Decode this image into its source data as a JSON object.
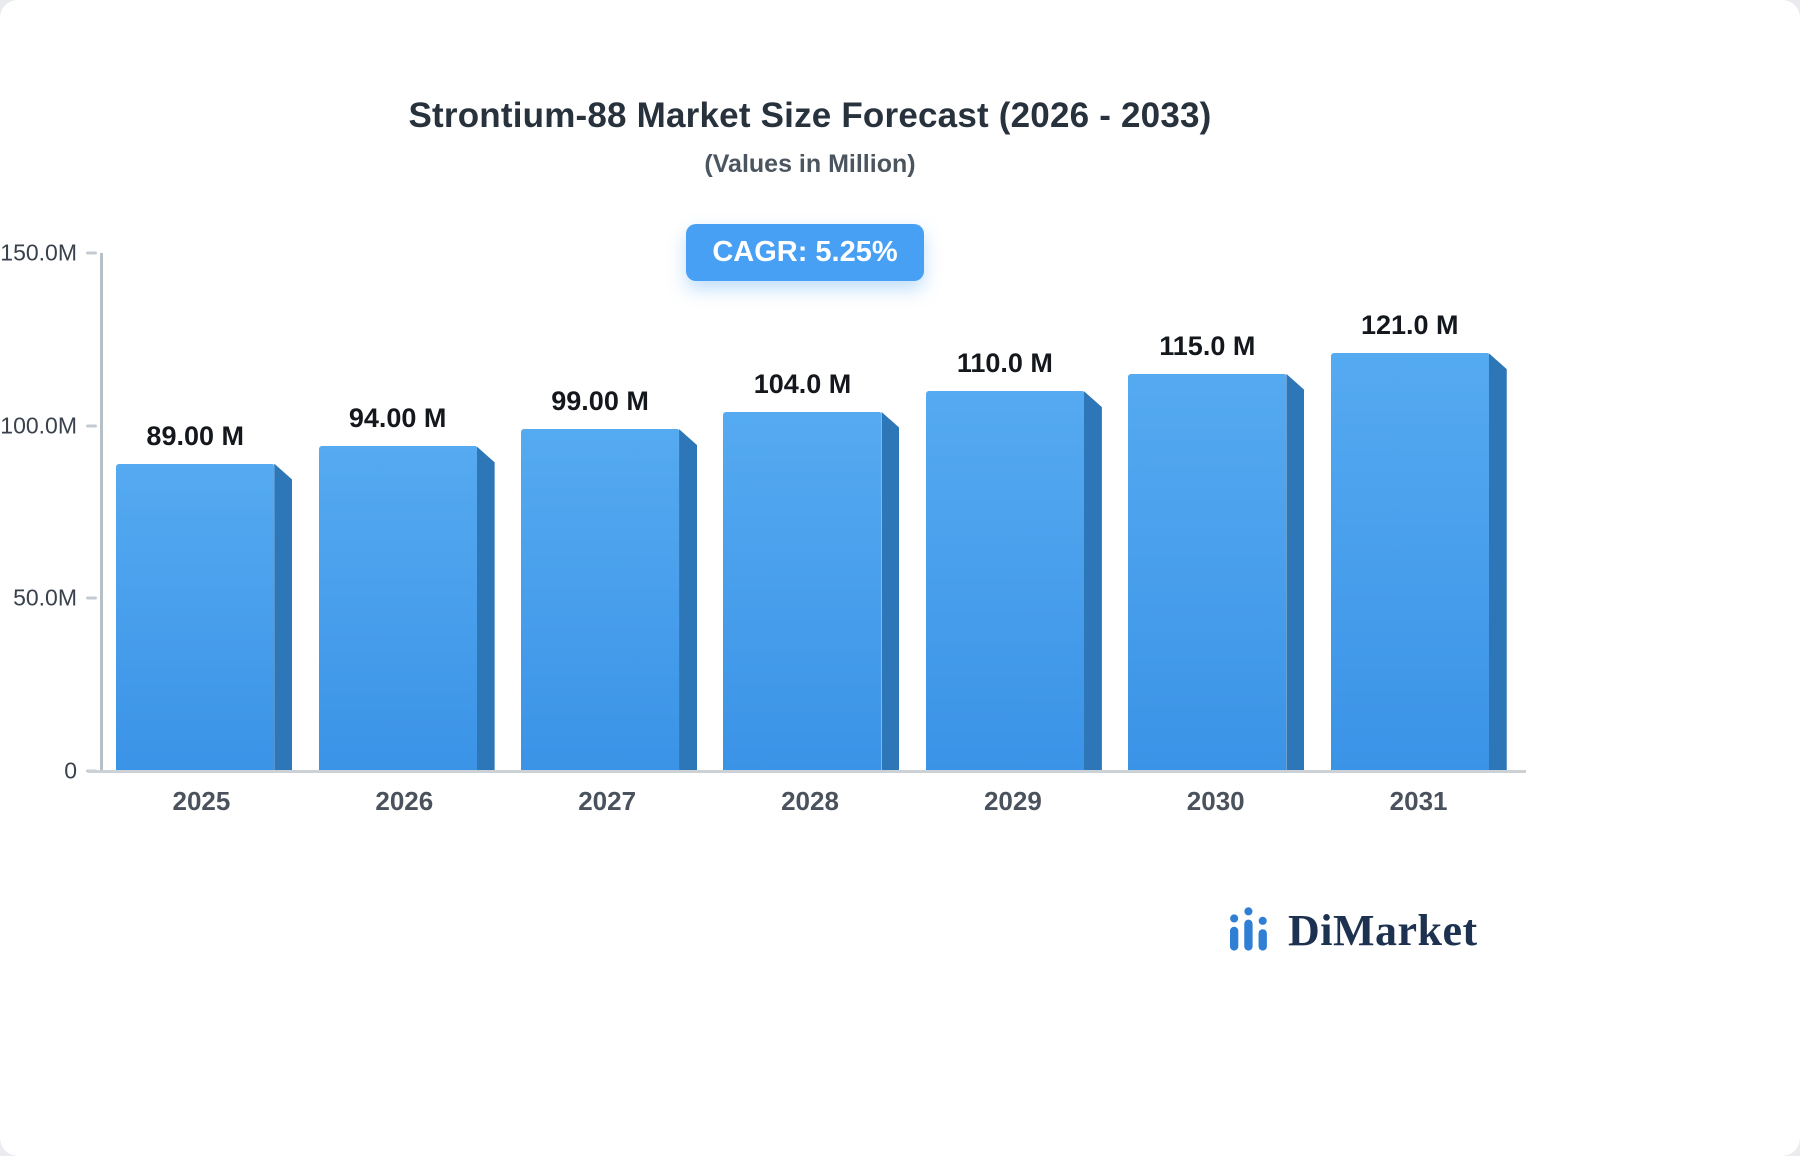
{
  "header": {
    "title": "Strontium-88 Market Size Forecast (2026 - 2033)",
    "subtitle": "(Values in Million)"
  },
  "badge": {
    "label": "CAGR: 5.25%"
  },
  "chart_data": {
    "type": "bar",
    "title": "Strontium-88 Market Size Forecast (2026 - 2033)",
    "subtitle": "(Values in Million)",
    "cagr_percent": 5.25,
    "unit": "Million",
    "categories": [
      "2025",
      "2026",
      "2027",
      "2028",
      "2029",
      "2030",
      "2031"
    ],
    "values": [
      89,
      94,
      99,
      104,
      110,
      115,
      121
    ],
    "value_labels": [
      "89.00 M",
      "94.00 M",
      "99.00 M",
      "104.0 M",
      "110.0 M",
      "115.0 M",
      "121.0 M"
    ],
    "xlabel": "",
    "ylabel": "",
    "ylim": [
      0,
      150
    ],
    "y_ticks": [
      {
        "value": 150,
        "label": "150.0M"
      },
      {
        "value": 100,
        "label": "100.0M"
      },
      {
        "value": 50,
        "label": "50.0M"
      },
      {
        "value": 0,
        "label": "0"
      }
    ],
    "grid": false,
    "legend": false,
    "colors": {
      "bar_front_top": "#55aaf0",
      "bar_front_bottom": "#3b93e7",
      "bar_side": "#2d76b8",
      "badge_bg": "#47a0f4",
      "axis": "#b7bfc7"
    }
  },
  "logo": {
    "icon": "bar-chart-logo-icon",
    "text": "DiMarket"
  }
}
